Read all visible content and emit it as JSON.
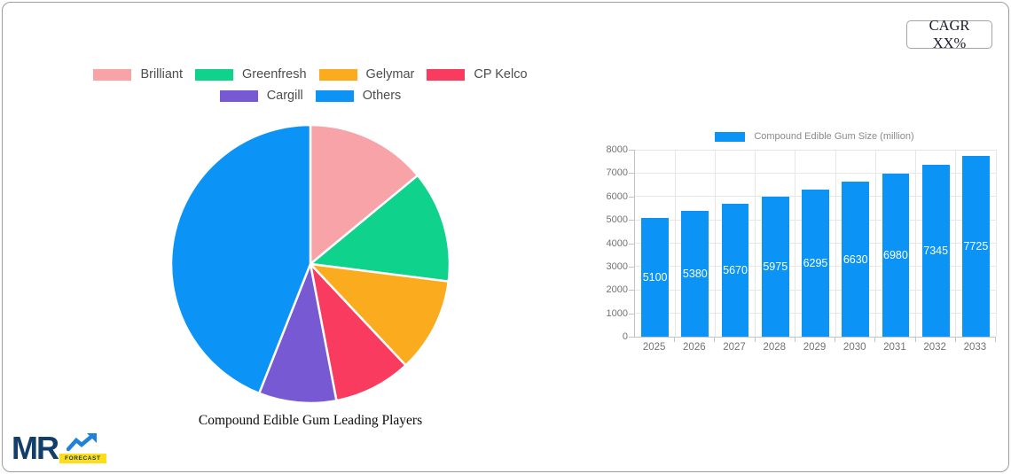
{
  "cagr_button": {
    "label": "CAGR XX%"
  },
  "logo": {
    "mr_text": "MR",
    "forecast_text": "FORECAST",
    "navy": "#123E6B",
    "arrow_blue": "#1E82D8",
    "badge_yellow": "#FFDE17"
  },
  "chart_data": [
    {
      "type": "pie",
      "title": "Compound Edible Gum Leading Players",
      "labels": [
        "Brilliant",
        "Greenfresh",
        "Gelymar",
        "CP Kelco",
        "Cargill",
        "Others"
      ],
      "values": [
        14,
        13,
        11,
        9,
        9,
        44
      ],
      "values_note": "percent share estimated from slice angles (no data labels shown)",
      "colors": [
        "#F7A3A8",
        "#0FD38C",
        "#FAAB1E",
        "#FA3B60",
        "#7859D4",
        "#0B93F5"
      ],
      "legend_rows": [
        [
          0,
          1,
          2,
          3
        ],
        [
          4,
          5
        ]
      ],
      "legend_position": "top",
      "start_angle_deg": 0,
      "direction": "clockwise",
      "slice_border_color": "#ffffff"
    },
    {
      "type": "bar",
      "legend": "Compound Edible Gum Size (million)",
      "categories": [
        "2025",
        "2026",
        "2027",
        "2028",
        "2029",
        "2030",
        "2031",
        "2032",
        "2033"
      ],
      "values": [
        5100,
        5380,
        5670,
        5975,
        6295,
        6630,
        6980,
        7345,
        7725
      ],
      "bar_color": "#0B93F5",
      "value_label_color": "#FFFFFF",
      "ylim": [
        0,
        8000
      ],
      "yticks": [
        0,
        1000,
        2000,
        3000,
        4000,
        5000,
        6000,
        7000,
        8000
      ],
      "grid": "on",
      "legend_position": "top"
    }
  ]
}
